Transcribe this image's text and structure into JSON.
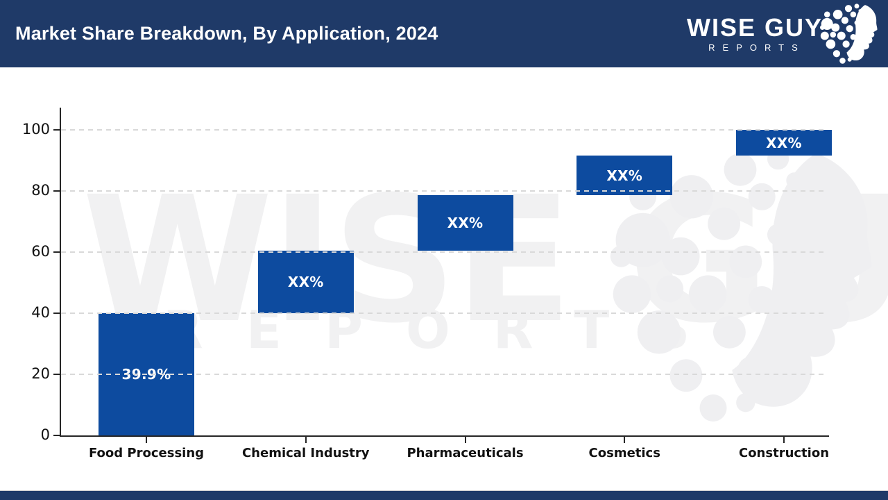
{
  "header": {
    "title": "Market Share Breakdown, By Application, 2024",
    "logo": {
      "line1": "WISE GUY",
      "line2": "REPORTS"
    }
  },
  "watermark": {
    "line1": "WISE GUY",
    "line2": "REPORTS"
  },
  "colors": {
    "header_navy": "#1f3a68",
    "bar_blue": "#0d4b9f",
    "grid_color": "#d9d9d9",
    "axis_color": "#262626",
    "watermark_gray": "#f1f1f2"
  },
  "chart_data": {
    "type": "bar",
    "subtype": "waterfall",
    "title": "Market Share Breakdown, By Application, 2024",
    "categories": [
      "Food Processing",
      "Chemical Industry",
      "Pharmaceuticals",
      "Cosmetics",
      "Construction"
    ],
    "bars": [
      {
        "category": "Food Processing",
        "start": 0,
        "end": 39.9,
        "value": 39.9,
        "label": "39.9%"
      },
      {
        "category": "Chemical Industry",
        "start": 39.9,
        "end": 60.5,
        "value": 20.6,
        "label": "XX%"
      },
      {
        "category": "Pharmaceuticals",
        "start": 60.5,
        "end": 78.6,
        "value": 18.1,
        "label": "XX%"
      },
      {
        "category": "Cosmetics",
        "start": 78.6,
        "end": 91.5,
        "value": 12.9,
        "label": "XX%"
      },
      {
        "category": "Construction",
        "start": 91.5,
        "end": 100,
        "value": 8.5,
        "label": "XX%"
      }
    ],
    "ylim": [
      0,
      105
    ],
    "yticks": [
      0,
      20,
      40,
      60,
      80,
      100
    ],
    "xlabel": "",
    "ylabel": "",
    "grid": "horizontal-dashed",
    "legend": null,
    "bar_color": "#0d4b9f",
    "label_color": "#ffffff"
  }
}
